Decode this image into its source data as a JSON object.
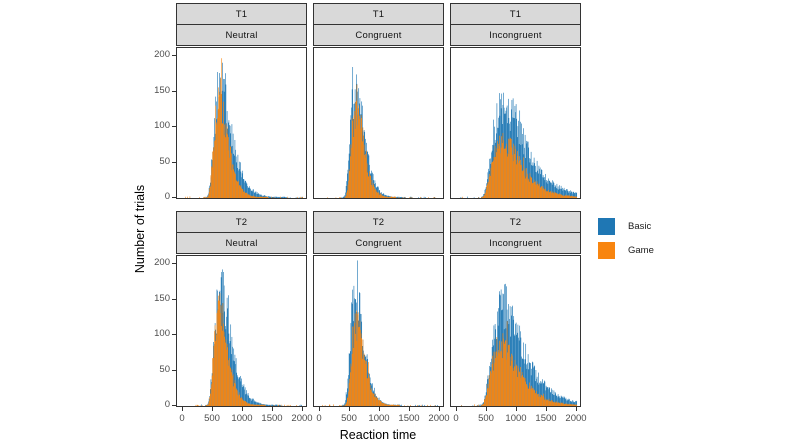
{
  "chart_data": {
    "type": "histogram",
    "title": "",
    "xlabel": "Reaction time",
    "ylabel": "Number of trials",
    "x_ticks": [
      0,
      500,
      1000,
      1500,
      2000
    ],
    "y_ticks": [
      0,
      50,
      100,
      150,
      200
    ],
    "xlim": [
      0,
      2050
    ],
    "ylim": [
      0,
      210
    ],
    "bin_width_ms": 10,
    "grid": "off",
    "facet_row_values": [
      "T1",
      "T2"
    ],
    "facet_col_values": [
      "Neutral",
      "Congruent",
      "Incongruent"
    ],
    "legend": {
      "position": "right",
      "entries": [
        {
          "label": "Basic",
          "color": "#1f77b4"
        },
        {
          "label": "Game",
          "color": "#f8850f"
        }
      ]
    },
    "panels": [
      {
        "row_label": "T1",
        "col_label": "Neutral",
        "series": [
          {
            "name": "Basic",
            "color": "#1f77b4",
            "onset": 310,
            "mode": 580,
            "sigma": 0.42,
            "peak": 180,
            "speck": 0.16,
            "seed": 11
          },
          {
            "name": "Game",
            "color": "#f8850f",
            "onset": 320,
            "mode": 570,
            "sigma": 0.38,
            "peak": 157,
            "speck": 0.3,
            "seed": 12
          }
        ]
      },
      {
        "row_label": "T1",
        "col_label": "Congruent",
        "series": [
          {
            "name": "Basic",
            "color": "#1f77b4",
            "onset": 305,
            "mode": 560,
            "sigma": 0.37,
            "peak": 176,
            "speck": 0.14,
            "seed": 21
          },
          {
            "name": "Game",
            "color": "#f8850f",
            "onset": 320,
            "mode": 575,
            "sigma": 0.34,
            "peak": 146,
            "speck": 0.28,
            "seed": 22
          }
        ]
      },
      {
        "row_label": "T1",
        "col_label": "Incongruent",
        "series": [
          {
            "name": "Basic",
            "color": "#1f77b4",
            "onset": 320,
            "mode": 680,
            "sigma": 0.52,
            "peak": 146,
            "speck": 0.14,
            "seed": 31
          },
          {
            "name": "Game",
            "color": "#f8850f",
            "onset": 325,
            "mode": 660,
            "sigma": 0.5,
            "peak": 92,
            "speck": 0.28,
            "seed": 32
          }
        ]
      },
      {
        "row_label": "T2",
        "col_label": "Neutral",
        "series": [
          {
            "name": "Basic",
            "color": "#1f77b4",
            "onset": 310,
            "mode": 585,
            "sigma": 0.4,
            "peak": 186,
            "speck": 0.16,
            "seed": 41
          },
          {
            "name": "Game",
            "color": "#f8850f",
            "onset": 320,
            "mode": 570,
            "sigma": 0.37,
            "peak": 150,
            "speck": 0.3,
            "seed": 42
          }
        ]
      },
      {
        "row_label": "T2",
        "col_label": "Congruent",
        "series": [
          {
            "name": "Basic",
            "color": "#1f77b4",
            "onset": 305,
            "mode": 560,
            "sigma": 0.36,
            "peak": 180,
            "speck": 0.14,
            "seed": 51
          },
          {
            "name": "Game",
            "color": "#f8850f",
            "onset": 320,
            "mode": 580,
            "sigma": 0.35,
            "peak": 127,
            "speck": 0.28,
            "seed": 52
          }
        ]
      },
      {
        "row_label": "T2",
        "col_label": "Incongruent",
        "series": [
          {
            "name": "Basic",
            "color": "#1f77b4",
            "onset": 320,
            "mode": 665,
            "sigma": 0.52,
            "peak": 158,
            "speck": 0.14,
            "seed": 61
          },
          {
            "name": "Game",
            "color": "#f8850f",
            "onset": 325,
            "mode": 645,
            "sigma": 0.5,
            "peak": 98,
            "speck": 0.28,
            "seed": 62
          }
        ]
      }
    ]
  }
}
